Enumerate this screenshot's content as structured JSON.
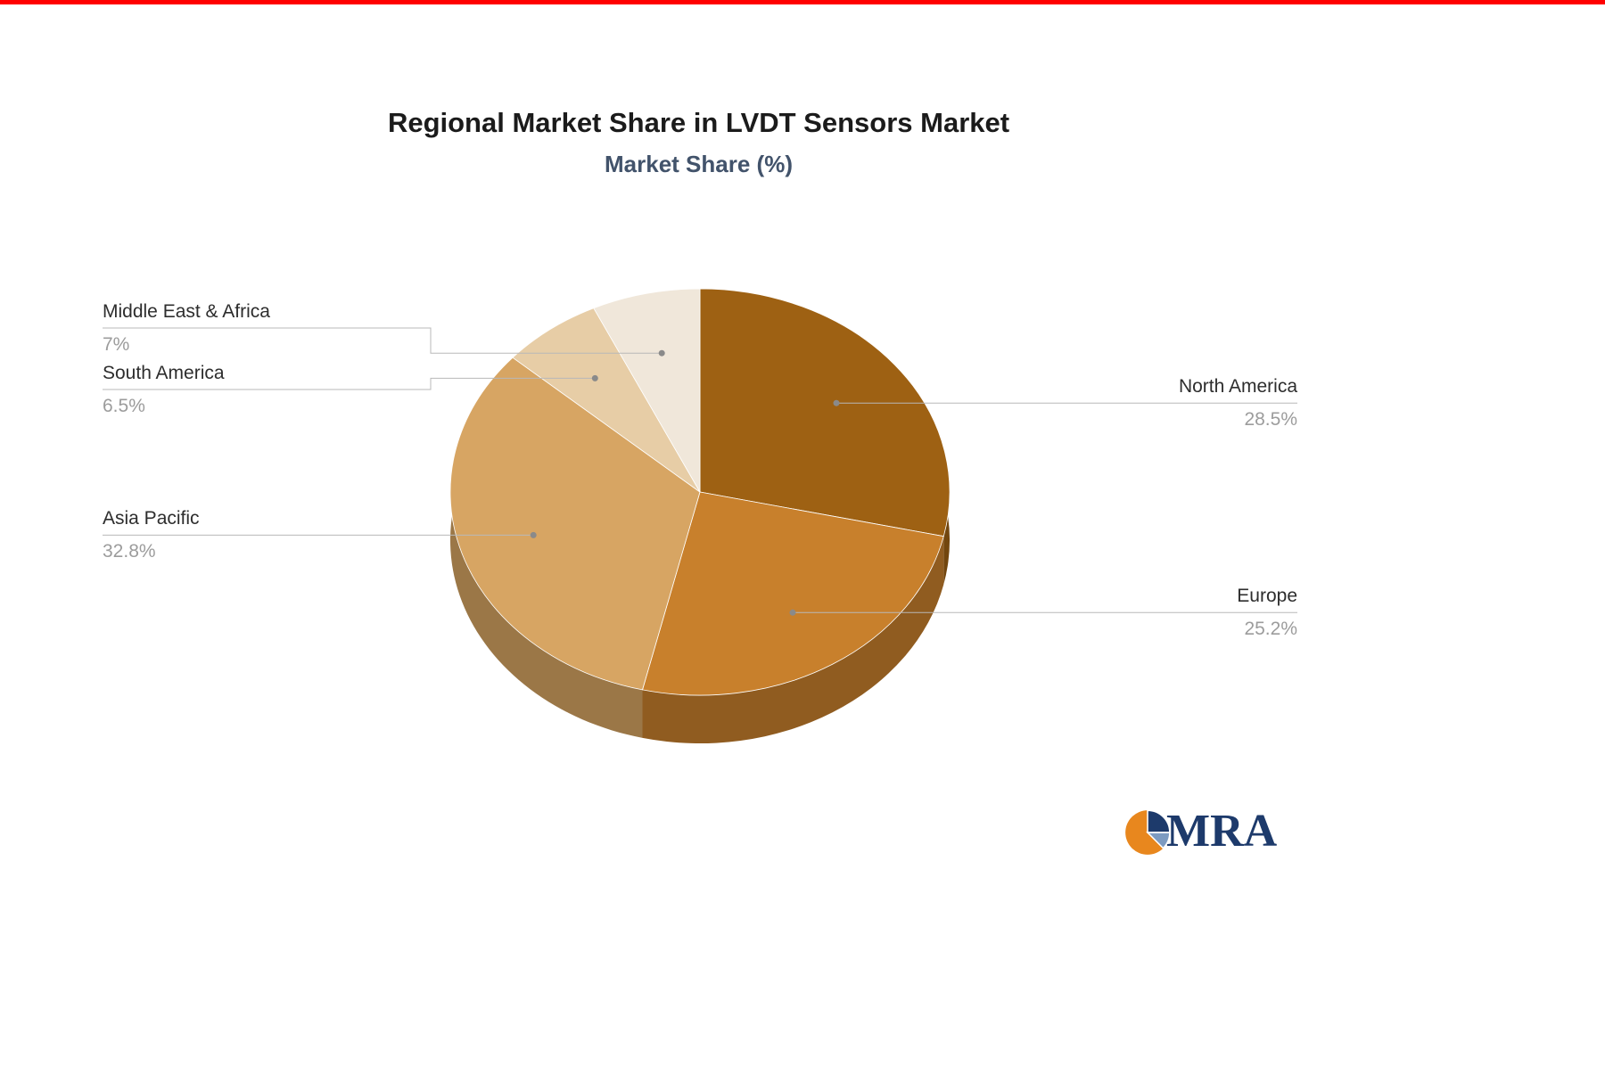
{
  "page": {
    "top_accent_color": "#ff0000",
    "background": "#ffffff"
  },
  "chart_data": {
    "type": "pie",
    "title": "Regional Market Share in LVDT Sensors Market",
    "subtitle": "Market Share (%)",
    "unit": "%",
    "legend_position": "none",
    "label_style": "callout-lines-with-dots",
    "effect": "3d-extruded",
    "categories": [
      "North America",
      "Europe",
      "Asia Pacific",
      "South America",
      "Middle East & Africa"
    ],
    "values": [
      28.5,
      25.2,
      32.8,
      6.5,
      7
    ],
    "slices": [
      {
        "label": "North America",
        "value": 28.5,
        "display": "28.5%",
        "color": "#9e6113"
      },
      {
        "label": "Europe",
        "value": 25.2,
        "display": "25.2%",
        "color": "#c8802c"
      },
      {
        "label": "Asia Pacific",
        "value": 32.8,
        "display": "32.8%",
        "color": "#d7a563"
      },
      {
        "label": "South America",
        "value": 6.5,
        "display": "6.5%",
        "color": "#e7cda6"
      },
      {
        "label": "Middle East & Africa",
        "value": 7,
        "display": "7%",
        "color": "#f0e7da"
      }
    ],
    "start_angle_deg": 0,
    "direction": "clockwise",
    "connector_color": "#b8b8b8",
    "dot_color": "#8a8a8a",
    "label_color": "#2d2d2d",
    "value_color": "#9c9c9c"
  },
  "logo": {
    "text": "MRA",
    "navy": "#1d3a6b",
    "orange": "#e8871e",
    "steel": "#7d9bc1"
  }
}
